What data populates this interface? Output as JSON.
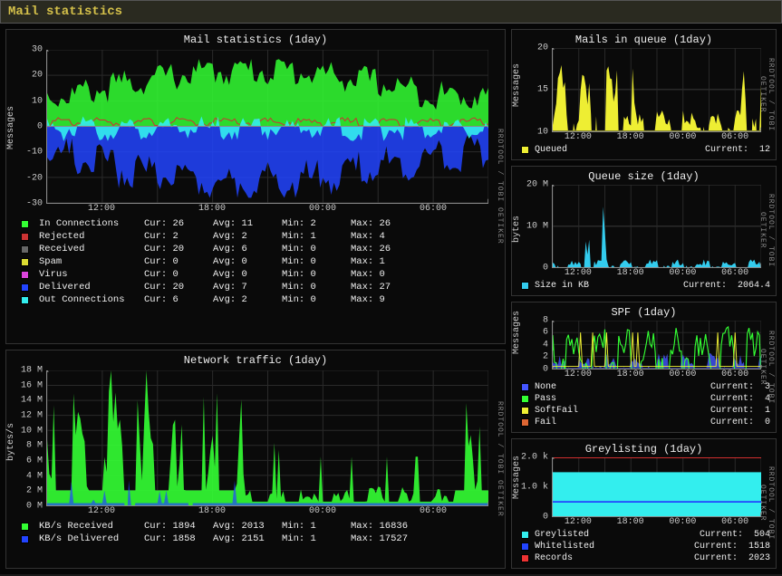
{
  "page_title": "Mail statistics",
  "watermark": "RRDTOOL / TOBI OETIKER",
  "xticks": [
    "12:00",
    "18:00",
    "00:00",
    "06:00"
  ],
  "mail_stats": {
    "title": "Mail statistics  (1day)",
    "ylabel": "Messages",
    "ylim": [
      -30,
      30
    ],
    "yticks": [
      -30,
      -20,
      -10,
      0,
      10,
      20,
      30
    ],
    "grid_color": "#2a2a2a",
    "series": [
      {
        "name": "In Connections",
        "color": "#33ff33",
        "cur": "26",
        "avg": "11",
        "min": "2",
        "max": "26"
      },
      {
        "name": "Rejected",
        "color": "#cc3333",
        "cur": "2",
        "avg": "2",
        "min": "1",
        "max": "4"
      },
      {
        "name": "Received",
        "color": "#666666",
        "cur": "20",
        "avg": "6",
        "min": "0",
        "max": "26"
      },
      {
        "name": "Spam",
        "color": "#dddd33",
        "cur": "0",
        "avg": "0",
        "min": "0",
        "max": "1"
      },
      {
        "name": "Virus",
        "color": "#dd44dd",
        "cur": "0",
        "avg": "0",
        "min": "0",
        "max": "0"
      },
      {
        "name": "Delivered",
        "color": "#2244ff",
        "cur": "20",
        "avg": "7",
        "min": "0",
        "max": "27"
      },
      {
        "name": "Out Connections",
        "color": "#33eeee",
        "cur": "6",
        "avg": "2",
        "min": "0",
        "max": "9"
      }
    ]
  },
  "network": {
    "title": "Network traffic  (1day)",
    "ylabel": "bytes/s",
    "ylim": [
      0,
      18
    ],
    "yticks": [
      0,
      2,
      4,
      6,
      8,
      10,
      12,
      14,
      16,
      18
    ],
    "ysuffix": " M",
    "series": [
      {
        "name": "KB/s Received",
        "color": "#33ff33",
        "cur": "1894",
        "avg": "2013",
        "min": "1",
        "max": "16836"
      },
      {
        "name": "KB/s Delivered",
        "color": "#2244ff",
        "cur": "1858",
        "avg": "2151",
        "min": "1",
        "max": "17527"
      }
    ]
  },
  "queue_mails": {
    "title": "Mails in queue  (1day)",
    "ylabel": "Messages",
    "ylim": [
      10,
      20
    ],
    "yticks": [
      10,
      15,
      20
    ],
    "series": [
      {
        "name": "Queued",
        "color": "#eeee33",
        "current": "12"
      }
    ]
  },
  "queue_size": {
    "title": "Queue size  (1day)",
    "ylabel": "bytes",
    "ylim": [
      0,
      20
    ],
    "yticks": [
      0,
      10,
      20
    ],
    "ysuffix": " M",
    "series": [
      {
        "name": "Size in KB",
        "color": "#33ccee",
        "current": "2064.4"
      }
    ]
  },
  "spf": {
    "title": "SPF  (1day)",
    "ylabel": "Messages",
    "ylim": [
      0,
      8
    ],
    "yticks": [
      0,
      2,
      4,
      6,
      8
    ],
    "series": [
      {
        "name": "None",
        "color": "#4455ff",
        "current": "3"
      },
      {
        "name": "Pass",
        "color": "#33ff33",
        "current": "4"
      },
      {
        "name": "SoftFail",
        "color": "#eeee33",
        "current": "1"
      },
      {
        "name": "Fail",
        "color": "#dd6633",
        "current": "0"
      }
    ]
  },
  "greylisting": {
    "title": "Greylisting  (1day)",
    "ylabel": "Messages",
    "ylim": [
      0,
      2
    ],
    "yticks": [
      0,
      1,
      2
    ],
    "ysuffix": ".0 k",
    "series": [
      {
        "name": "Greylisted",
        "color": "#33eeee",
        "current": "504"
      },
      {
        "name": "Whitelisted",
        "color": "#2244ff",
        "current": "1518"
      },
      {
        "name": "Records",
        "color": "#ee3333",
        "current": "2023"
      }
    ]
  },
  "labels": {
    "cur": "Cur:",
    "avg": "Avg:",
    "min": "Min:",
    "max": "Max:",
    "current": "Current:"
  }
}
